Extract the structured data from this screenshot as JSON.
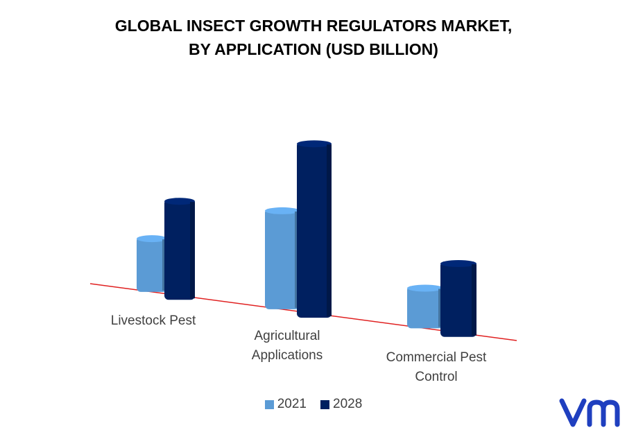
{
  "title_lines": [
    "GLOBAL INSECT GROWTH REGULATORS MARKET,",
    "BY APPLICATION (USD BILLION)"
  ],
  "colors": {
    "series_2021": "#5b9bd5",
    "series_2028": "#002060",
    "baseline": "#e02020",
    "logo": "#1f3fbf"
  },
  "logo_icon": "vmr-logo-icon",
  "chart_data": {
    "type": "bar",
    "categories": [
      "Livestock Pest",
      "Agricultural\nApplications",
      "Commercial Pest\nControl"
    ],
    "series": [
      {
        "name": "2021",
        "values": [
          0.55,
          1.0,
          0.42
        ]
      },
      {
        "name": "2028",
        "values": [
          1.0,
          1.75,
          0.75
        ]
      }
    ],
    "xlabel": "",
    "ylabel": "",
    "grid": false,
    "legend_placement": "bottom"
  }
}
